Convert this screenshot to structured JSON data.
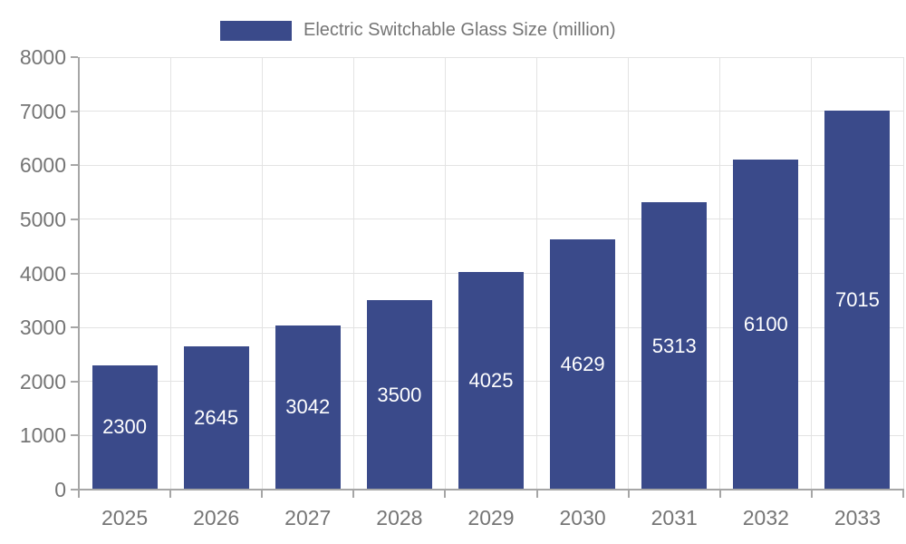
{
  "legend": {
    "label": "Electric Switchable Glass Size (million)"
  },
  "chart_data": {
    "type": "bar",
    "title": "Electric Switchable Glass Size (million)",
    "series_name": "Electric Switchable Glass Size (million)",
    "legend_position": "top-center",
    "categories": [
      "2025",
      "2026",
      "2027",
      "2028",
      "2029",
      "2030",
      "2031",
      "2032",
      "2033"
    ],
    "values": [
      2300,
      2645,
      3042,
      3500,
      4025,
      4629,
      5313,
      6100,
      7015
    ],
    "xlabel": "",
    "ylabel": "",
    "ylim": [
      0,
      8000
    ],
    "y_ticks": [
      0,
      1000,
      2000,
      3000,
      4000,
      5000,
      6000,
      7000,
      8000
    ],
    "grid": true,
    "bar_labels_inside": true,
    "colors": {
      "bar": "#3A4A8A",
      "grid_line": "#e3e3e3",
      "axis_line": "#a6a6a6",
      "tick_label": "#757575",
      "bar_label": "#ffffff",
      "legend_text": "#757575",
      "background": "#ffffff"
    }
  }
}
